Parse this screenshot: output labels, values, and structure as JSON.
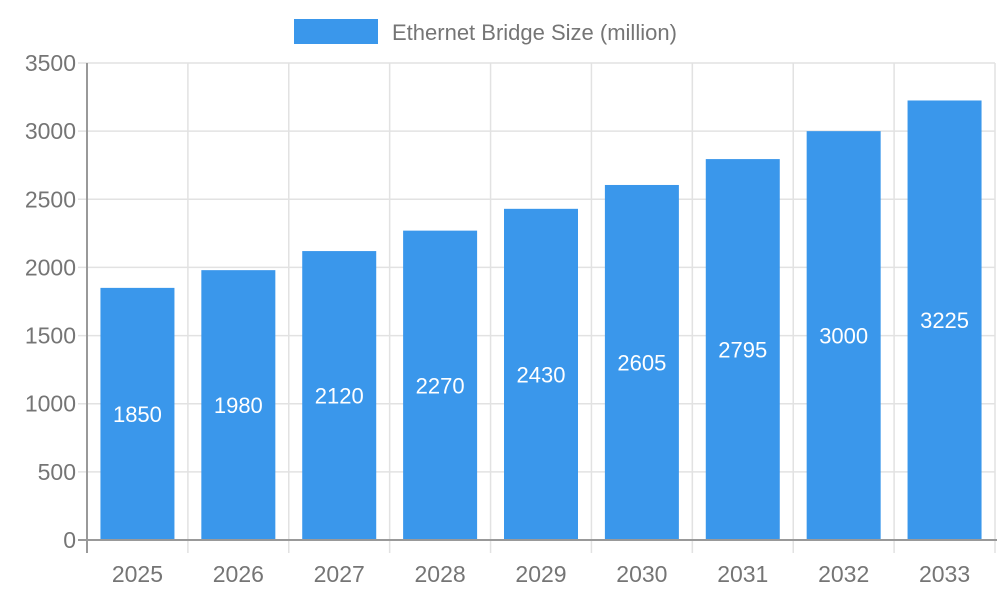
{
  "chart_data": {
    "type": "bar",
    "title": "",
    "legend_label": "Ethernet Bridge Size (million)",
    "legend_position": "top",
    "categories": [
      "2025",
      "2026",
      "2027",
      "2028",
      "2029",
      "2030",
      "2031",
      "2032",
      "2033"
    ],
    "values": [
      1850,
      1980,
      2120,
      2270,
      2430,
      2605,
      2795,
      3000,
      3225
    ],
    "xlabel": "",
    "ylabel": "",
    "ylim": [
      0,
      3500
    ],
    "ytick_step": 500,
    "y_ticks": [
      "0",
      "500",
      "1000",
      "1500",
      "2000",
      "2500",
      "3000",
      "3500"
    ],
    "grid": true,
    "colors": {
      "bar": "#3A97EB",
      "grid": "#E2E2E2",
      "axis": "#999999",
      "text": "#757575",
      "bar_label": "#FFFFFF",
      "background": "#FFFFFF"
    }
  }
}
